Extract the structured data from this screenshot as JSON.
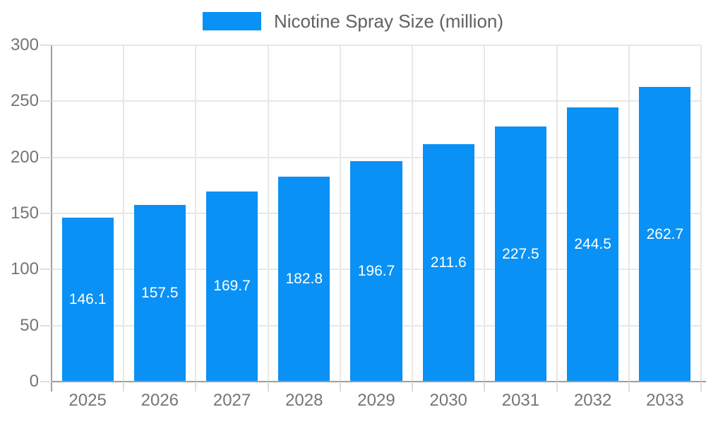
{
  "chart_data": {
    "type": "bar",
    "legend": [
      "Nicotine Spray Size (million)"
    ],
    "series_name": "Nicotine Spray Size (million)",
    "categories": [
      "2025",
      "2026",
      "2027",
      "2028",
      "2029",
      "2030",
      "2031",
      "2032",
      "2033"
    ],
    "values": [
      146.1,
      157.5,
      169.7,
      182.8,
      196.7,
      211.6,
      227.5,
      244.5,
      262.7
    ],
    "value_decimals": 1,
    "xlabel": "",
    "ylabel": "",
    "ylim": [
      0,
      300
    ],
    "yticks": [
      0,
      50,
      100,
      150,
      200,
      250,
      300
    ],
    "grid": true,
    "legend_position": "top",
    "colors": {
      "bar": "#0A91F5",
      "value_label": "#FFFFFF",
      "axis": "#9E9E9E",
      "gridline": "#E7E7E7",
      "tick_label": "#757575",
      "legend_text": "#616161"
    }
  }
}
